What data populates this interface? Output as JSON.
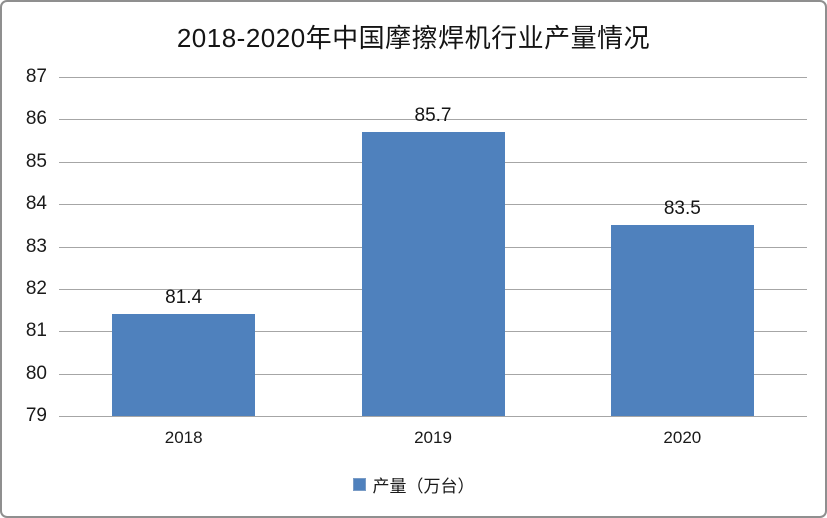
{
  "chart_data": {
    "type": "bar",
    "title": "2018-2020年中国摩擦焊机行业产量情况",
    "categories": [
      "2018",
      "2019",
      "2020"
    ],
    "series": [
      {
        "name": "产量（万台）",
        "values": [
          81.4,
          85.7,
          83.5
        ]
      }
    ],
    "data_labels": [
      "81.4",
      "85.7",
      "83.5"
    ],
    "xlabel": "",
    "ylabel": "",
    "ylim": [
      79,
      87
    ],
    "ytick_step": 1,
    "yticks": [
      79,
      80,
      81,
      82,
      83,
      84,
      85,
      86,
      87
    ],
    "grid": true,
    "legend_position": "bottom",
    "colors": {
      "bar": "#4F81BD",
      "gridline": "#A6A6A6",
      "text": "#141414",
      "frame_border": "#8F8F8F",
      "background": "#FFFFFF"
    }
  }
}
